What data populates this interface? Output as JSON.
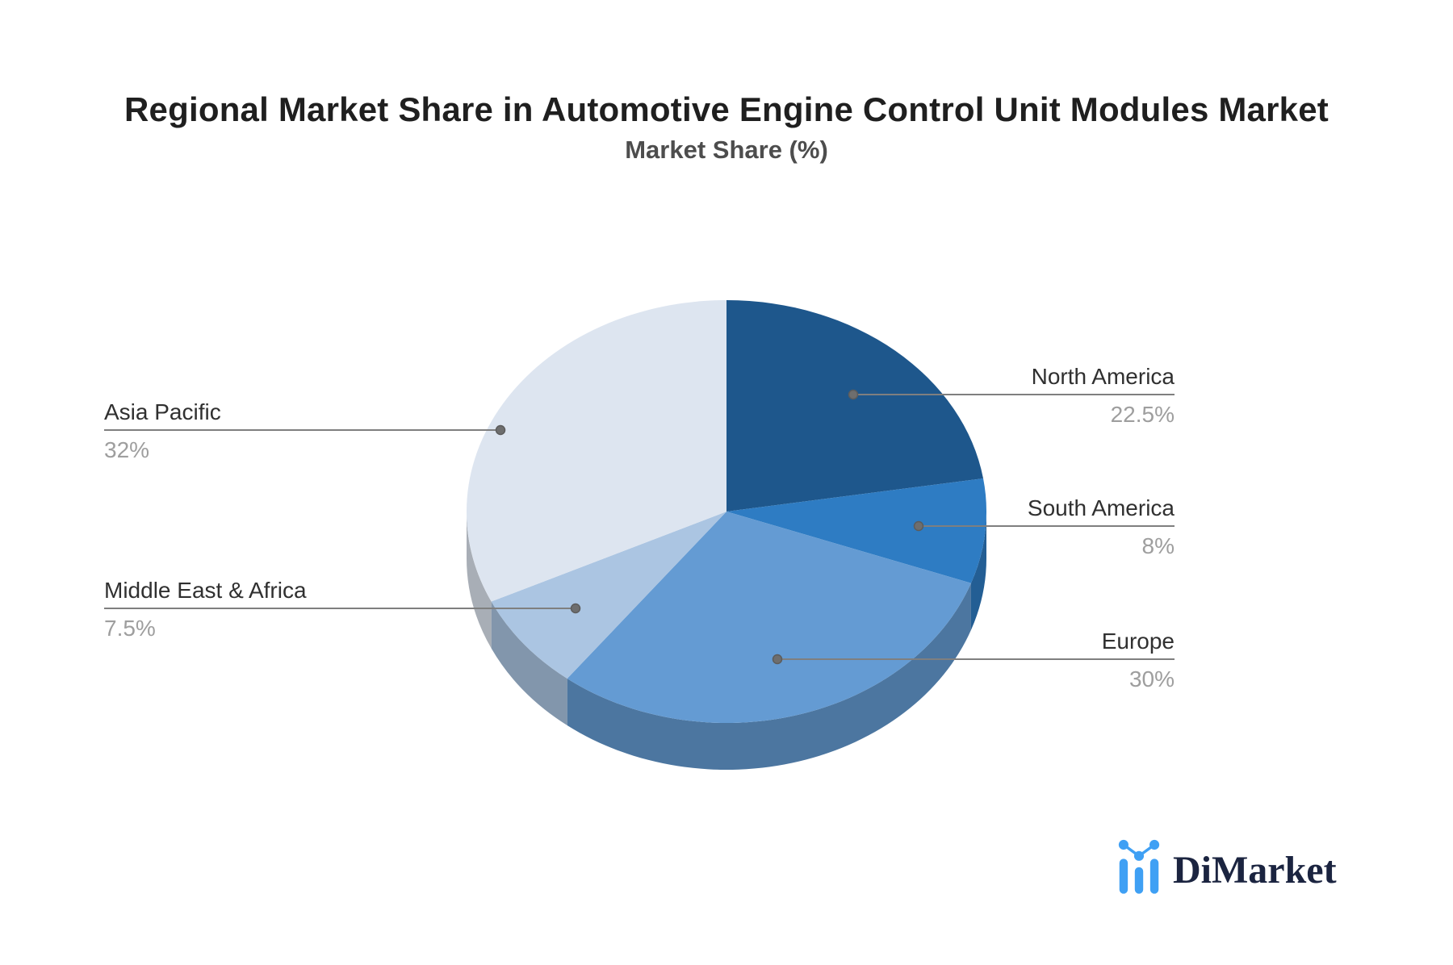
{
  "header": {
    "title": "Regional Market Share in Automotive Engine Control Unit Modules Market",
    "subtitle": "Market Share (%)"
  },
  "chart_data": {
    "type": "pie",
    "style": "3d",
    "title": "Regional Market Share in Automotive Engine Control Unit Modules Market",
    "subtitle": "Market Share (%)",
    "unit": "%",
    "start_angle_deg": 0,
    "direction": "clockwise",
    "legend_position": "none",
    "series": [
      {
        "label": "North America",
        "value": 22.5,
        "display": "22.5%",
        "color": "#1e578c",
        "label_side": "right"
      },
      {
        "label": "South America",
        "value": 8,
        "display": "8%",
        "color": "#2e7cc3",
        "label_side": "right"
      },
      {
        "label": "Europe",
        "value": 30,
        "display": "30%",
        "color": "#649bd3",
        "label_side": "right"
      },
      {
        "label": "Middle East & Africa",
        "value": 7.5,
        "display": "7.5%",
        "color": "#abc5e2",
        "label_side": "left"
      },
      {
        "label": "Asia Pacific",
        "value": 32,
        "display": "32%",
        "color": "#dde5f0",
        "label_side": "left"
      }
    ],
    "colors": {
      "connector_line": "#7f7f7f",
      "connector_dot": "#6e6e6e",
      "label_name": "#303030",
      "label_value": "#9e9e9e"
    }
  },
  "logo": {
    "text": "DiMarket",
    "icon": "bar-chart-icon",
    "icon_color": "#3fa0f4",
    "text_color": "#1b2440"
  }
}
